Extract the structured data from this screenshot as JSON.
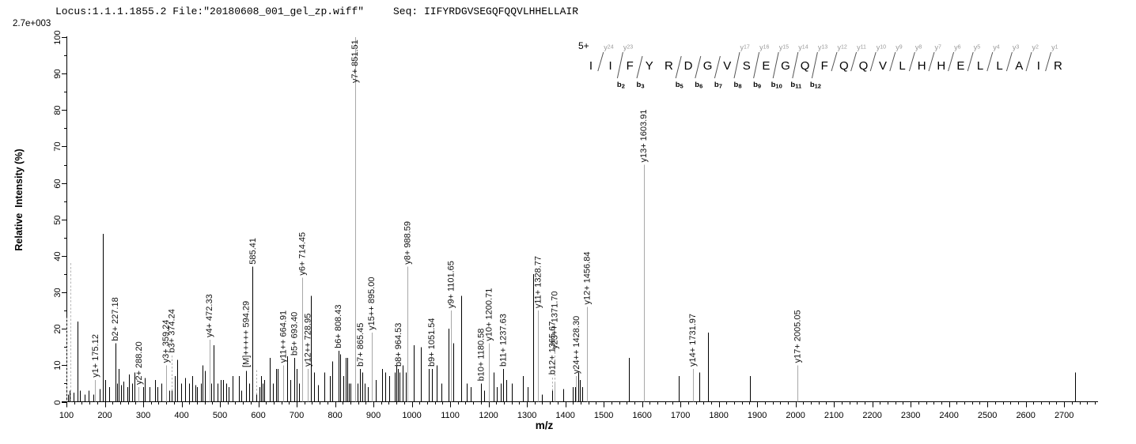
{
  "header": {
    "locus_file": "Locus:1.1.1.1855.2 File:\"20180608_001_gel_zp.wiff\"",
    "seq": "Seq: IIFYRDGVSEGQFQQVLHHELLAIR",
    "intensity_scale": "2.7e+003"
  },
  "axes": {
    "x_label": "m/z",
    "y_label": "Relative  Intensity (%)"
  },
  "ladder": {
    "charge": "5+",
    "residues": [
      "I",
      "I",
      "F",
      "Y",
      "R",
      "D",
      "G",
      "V",
      "S",
      "E",
      "G",
      "Q",
      "F",
      "Q",
      "Q",
      "V",
      "L",
      "H",
      "H",
      "E",
      "L",
      "L",
      "A",
      "I",
      "R"
    ],
    "y_ions": [
      {
        "site": 1,
        "label": "y24"
      },
      {
        "site": 2,
        "label": "y23"
      },
      {
        "site": 8,
        "label": "y17"
      },
      {
        "site": 9,
        "label": "y16"
      },
      {
        "site": 10,
        "label": "y15"
      },
      {
        "site": 11,
        "label": "y14"
      },
      {
        "site": 12,
        "label": "y13"
      },
      {
        "site": 13,
        "label": "y12"
      },
      {
        "site": 14,
        "label": "y11"
      },
      {
        "site": 15,
        "label": "y10"
      },
      {
        "site": 16,
        "label": "y9"
      },
      {
        "site": 17,
        "label": "y8"
      },
      {
        "site": 18,
        "label": "y7"
      },
      {
        "site": 19,
        "label": "y6"
      },
      {
        "site": 20,
        "label": "y5"
      },
      {
        "site": 21,
        "label": "y4"
      },
      {
        "site": 22,
        "label": "y3"
      },
      {
        "site": 23,
        "label": "y2"
      },
      {
        "site": 24,
        "label": "y1"
      }
    ],
    "b_ions": [
      {
        "site": 2,
        "label": "b2"
      },
      {
        "site": 3,
        "label": "b3"
      },
      {
        "site": 5,
        "label": "b5"
      },
      {
        "site": 6,
        "label": "b6"
      },
      {
        "site": 7,
        "label": "b7"
      },
      {
        "site": 8,
        "label": "b8"
      },
      {
        "site": 9,
        "label": "b9"
      },
      {
        "site": 10,
        "label": "b10"
      },
      {
        "site": 11,
        "label": "b11"
      },
      {
        "site": 12,
        "label": "b12"
      }
    ]
  },
  "chart_data": {
    "type": "bar",
    "subtype": "ms2-centroid-spectrum",
    "title": "",
    "xlabel": "m/z",
    "ylabel": "Relative  Intensity (%)",
    "xlim": [
      100,
      2780
    ],
    "ylim": [
      0,
      100
    ],
    "x_major_tick": 100,
    "x_minor_tick": 20,
    "y_major_tick": 10,
    "y_minor_tick": 5,
    "intensity_scale_label": "2.7e+003",
    "colors": {
      "y_ion_line": "#a8a8a8",
      "y_ion_label": "#9b9b9b",
      "b_ion": "#000000",
      "background": "#000000",
      "dashed_marker": "#b5b5b5"
    },
    "labeled_peaks": [
      {
        "mz": 175.12,
        "i": 6,
        "ion": "y",
        "label": "y1+ 175.12"
      },
      {
        "mz": 227.18,
        "i": 16,
        "ion": "b",
        "label": "b2+ 227.18"
      },
      {
        "mz": 288.2,
        "i": 4,
        "ion": "y",
        "label": "y2+ 288.20"
      },
      {
        "mz": 359.24,
        "i": 10,
        "ion": "y",
        "label": "y3+ 359.24"
      },
      {
        "mz": 374.24,
        "i": 3,
        "ion": "b",
        "label": "b3+ 374.24",
        "leader": 10
      },
      {
        "mz": 472.33,
        "i": 17,
        "ion": "y",
        "label": "y4+ 472.33"
      },
      {
        "mz": 585.41,
        "i": 37,
        "ion": "x",
        "label": "585.41"
      },
      {
        "mz": 594.29,
        "i": 2,
        "ion": "M",
        "label": "[M]+++++ 594.29",
        "leader": 7,
        "dx": -13
      },
      {
        "mz": 664.91,
        "i": 10,
        "ion": "y",
        "label": "y11++ 664.91"
      },
      {
        "mz": 693.4,
        "i": 12,
        "ion": "b",
        "label": "b5+ 693.40"
      },
      {
        "mz": 714.45,
        "i": 34,
        "ion": "y",
        "label": "y6+ 714.45"
      },
      {
        "mz": 728.95,
        "i": 9,
        "ion": "y",
        "label": "y12++ 728.95"
      },
      {
        "mz": 808.43,
        "i": 14,
        "ion": "b",
        "label": "b6+ 808.43"
      },
      {
        "mz": 851.51,
        "i": 100,
        "ion": "y",
        "label": "y7+ 851.51"
      },
      {
        "mz": 865.45,
        "i": 9,
        "ion": "b",
        "label": "b7+ 865.45"
      },
      {
        "mz": 895.0,
        "i": 19,
        "ion": "y",
        "label": "y15++ 895.00"
      },
      {
        "mz": 964.53,
        "i": 9,
        "ion": "b",
        "label": "b8+ 964.53"
      },
      {
        "mz": 988.59,
        "i": 37,
        "ion": "y",
        "label": "y8+ 988.59"
      },
      {
        "mz": 1051.54,
        "i": 9,
        "ion": "b",
        "label": "b9+ 1051.54"
      },
      {
        "mz": 1101.65,
        "i": 25,
        "ion": "y",
        "label": "y9+ 1101.65"
      },
      {
        "mz": 1180.58,
        "i": 5,
        "ion": "b",
        "label": "b10+ 1180.58"
      },
      {
        "mz": 1200.71,
        "i": 16,
        "ion": "y",
        "label": "y10+ 1200.71"
      },
      {
        "mz": 1237.63,
        "i": 9,
        "ion": "b",
        "label": "b11+ 1237.63"
      },
      {
        "mz": 1328.77,
        "i": 25,
        "ion": "y",
        "label": "y11+ 1328.77"
      },
      {
        "mz": 1365.67,
        "i": 3,
        "ion": "b",
        "label": "b12+ 1365.67",
        "leader": 4
      },
      {
        "mz": 1371.7,
        "i": 5,
        "ion": "y",
        "label": "y23++ 1371.70",
        "leader": 9
      },
      {
        "mz": 1428.3,
        "i": 7,
        "ion": "y",
        "label": "y24++ 1428.30"
      },
      {
        "mz": 1456.84,
        "i": 26,
        "ion": "y",
        "label": "y12+ 1456.84"
      },
      {
        "mz": 1603.91,
        "i": 65,
        "ion": "y",
        "label": "y13+ 1603.91"
      },
      {
        "mz": 1731.97,
        "i": 9,
        "ion": "y",
        "label": "y14+ 1731.97"
      },
      {
        "mz": 2005.05,
        "i": 10,
        "ion": "y",
        "label": "y17+ 2005.05"
      }
    ],
    "dashed_marker_lines": [
      [
        101,
        23
      ],
      [
        111,
        38
      ]
    ],
    "background_peaks": [
      [
        104,
        2
      ],
      [
        108,
        3
      ],
      [
        118,
        2.5
      ],
      [
        128,
        22
      ],
      [
        136,
        3
      ],
      [
        148,
        2
      ],
      [
        158,
        3
      ],
      [
        171,
        2
      ],
      [
        186,
        3.5
      ],
      [
        194,
        46
      ],
      [
        202,
        6
      ],
      [
        212,
        4
      ],
      [
        232,
        5
      ],
      [
        237,
        9
      ],
      [
        242,
        4.5
      ],
      [
        248,
        5.5
      ],
      [
        258,
        4
      ],
      [
        262,
        7.5
      ],
      [
        272,
        5
      ],
      [
        278,
        8
      ],
      [
        299,
        4
      ],
      [
        305,
        6.5
      ],
      [
        316,
        4
      ],
      [
        330,
        6
      ],
      [
        338,
        4
      ],
      [
        347,
        5
      ],
      [
        367,
        3
      ],
      [
        382,
        7
      ],
      [
        388,
        11.5
      ],
      [
        398,
        5
      ],
      [
        409,
        6.5
      ],
      [
        419,
        5
      ],
      [
        427,
        7
      ],
      [
        437,
        4.5
      ],
      [
        441,
        4
      ],
      [
        450,
        5
      ],
      [
        455,
        10
      ],
      [
        460,
        8.5
      ],
      [
        478,
        5
      ],
      [
        484,
        15.5
      ],
      [
        493,
        5
      ],
      [
        501,
        6
      ],
      [
        509,
        6
      ],
      [
        517,
        5
      ],
      [
        522,
        4
      ],
      [
        532,
        7
      ],
      [
        550,
        7
      ],
      [
        556,
        3
      ],
      [
        567,
        8.5
      ],
      [
        577,
        5
      ],
      [
        602,
        4
      ],
      [
        608,
        7
      ],
      [
        612,
        5
      ],
      [
        616,
        6
      ],
      [
        629,
        12
      ],
      [
        639,
        5
      ],
      [
        647,
        9
      ],
      [
        651,
        9
      ],
      [
        676,
        12.5
      ],
      [
        683,
        6
      ],
      [
        699,
        9
      ],
      [
        706,
        5
      ],
      [
        736,
        29
      ],
      [
        746,
        8
      ],
      [
        756,
        4.5
      ],
      [
        773,
        8
      ],
      [
        787,
        7
      ],
      [
        793,
        11
      ],
      [
        814,
        13
      ],
      [
        821,
        7
      ],
      [
        827,
        12
      ],
      [
        831,
        12
      ],
      [
        836,
        5
      ],
      [
        841,
        5
      ],
      [
        858,
        5
      ],
      [
        872,
        8
      ],
      [
        878,
        5
      ],
      [
        885,
        4
      ],
      [
        907,
        6
      ],
      [
        923,
        9
      ],
      [
        931,
        8
      ],
      [
        942,
        7
      ],
      [
        955,
        8
      ],
      [
        960,
        10
      ],
      [
        968,
        8
      ],
      [
        977,
        10
      ],
      [
        985,
        8
      ],
      [
        1006,
        15.5
      ],
      [
        1024,
        15
      ],
      [
        1044,
        9
      ],
      [
        1065,
        10
      ],
      [
        1078,
        5
      ],
      [
        1096,
        20
      ],
      [
        1108,
        16
      ],
      [
        1129,
        29
      ],
      [
        1144,
        5
      ],
      [
        1154,
        4
      ],
      [
        1189,
        3
      ],
      [
        1214,
        8
      ],
      [
        1222,
        4
      ],
      [
        1232,
        5
      ],
      [
        1247,
        6
      ],
      [
        1260,
        5
      ],
      [
        1290,
        7
      ],
      [
        1302,
        4
      ],
      [
        1316,
        35
      ],
      [
        1340,
        2
      ],
      [
        1395,
        3.5
      ],
      [
        1420,
        4
      ],
      [
        1425,
        4
      ],
      [
        1433,
        8
      ],
      [
        1437,
        6
      ],
      [
        1444,
        4
      ],
      [
        1565,
        12
      ],
      [
        1695,
        7
      ],
      [
        1750,
        8
      ],
      [
        1772,
        19
      ],
      [
        1882,
        7
      ],
      [
        2728,
        8
      ]
    ]
  }
}
